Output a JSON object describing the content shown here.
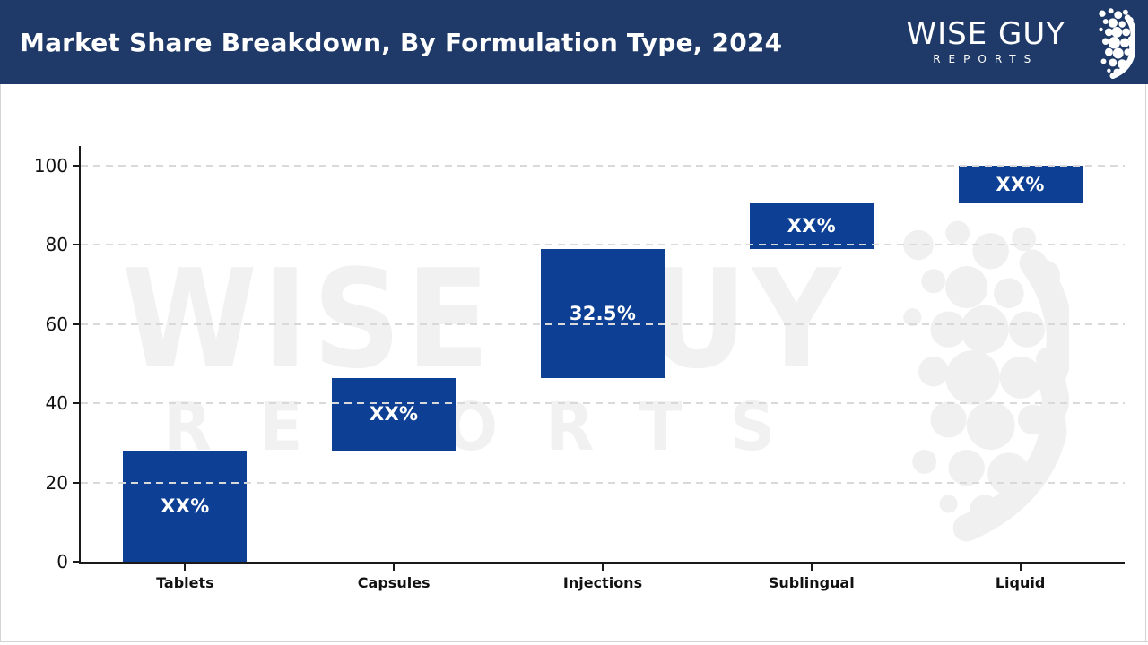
{
  "header": {
    "title": "Market Share Breakdown, By Formulation Type, 2024",
    "logo_line1": "WISE GUY",
    "logo_line2": "REPORTS"
  },
  "watermark": {
    "line1": "WISE GUY",
    "line2": "REPORTS"
  },
  "colors": {
    "header_bg": "#1f3a68",
    "bar": "#0d4094",
    "gridline": "#d9d9d9",
    "axis": "#1a1a1a",
    "bar_label": "#ffffff"
  },
  "chart_data": {
    "type": "bar",
    "subtype": "floating-waterfall",
    "title": "Market Share Breakdown, By Formulation Type, 2024",
    "xlabel": "",
    "ylabel": "",
    "categories": [
      "Tablets",
      "Capsules",
      "Injections",
      "Sublingual",
      "Liquid"
    ],
    "segments": [
      {
        "category": "Tablets",
        "start": 0,
        "end": 28,
        "label": "XX%"
      },
      {
        "category": "Capsules",
        "start": 28,
        "end": 46.5,
        "label": "XX%"
      },
      {
        "category": "Injections",
        "start": 46.5,
        "end": 79,
        "label": "32.5%"
      },
      {
        "category": "Sublingual",
        "start": 79,
        "end": 90.5,
        "label": "XX%"
      },
      {
        "category": "Liquid",
        "start": 90.5,
        "end": 100,
        "label": "XX%"
      }
    ],
    "yticks": [
      0,
      20,
      40,
      60,
      80,
      100
    ],
    "ylim": [
      0,
      105
    ],
    "grid": "horizontal-dashed-over-bars",
    "legend": "none"
  }
}
